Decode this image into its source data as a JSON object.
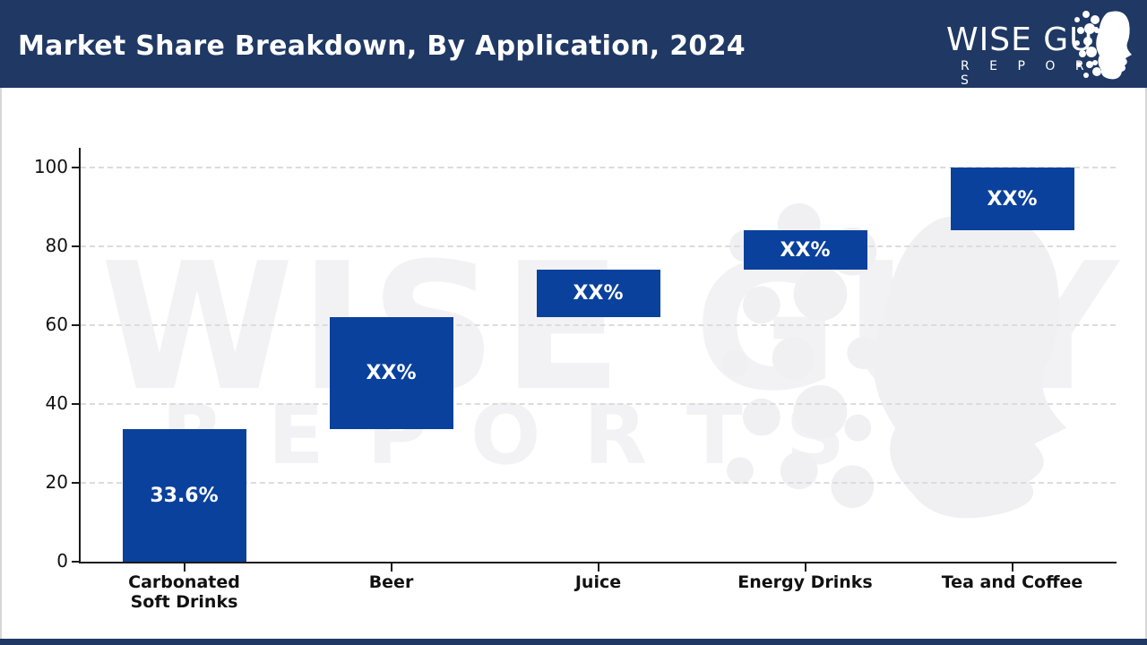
{
  "header": {
    "title": "Market Share Breakdown, By Application, 2024",
    "logo": {
      "name_line": "WISE GUY",
      "reports_line": "R E P O R T S"
    }
  },
  "watermark": {
    "name_line": "WISE GUY",
    "reports_line": "REPORTS"
  },
  "chart_data": {
    "type": "bar",
    "variant": "waterfall-floating-bars",
    "title": "Market Share Breakdown, By Application, 2024",
    "categories": [
      "Carbonated Soft Drinks",
      "Beer",
      "Juice",
      "Energy Drinks",
      "Tea and Coffee"
    ],
    "series": [
      {
        "name": "Market share (%)",
        "segments": [
          {
            "category": "Carbonated Soft Drinks",
            "start": 0,
            "end": 33.6,
            "label": "33.6%"
          },
          {
            "category": "Beer",
            "start": 33.6,
            "end": 62,
            "label": "XX%"
          },
          {
            "category": "Juice",
            "start": 62,
            "end": 74,
            "label": "XX%"
          },
          {
            "category": "Energy Drinks",
            "start": 74,
            "end": 84,
            "label": "XX%"
          },
          {
            "category": "Tea and Coffee",
            "start": 84,
            "end": 100,
            "label": "XX%"
          }
        ]
      }
    ],
    "ylim": [
      0,
      100
    ],
    "yticks": [
      0,
      20,
      40,
      60,
      80,
      100
    ],
    "grid": {
      "axis": "y",
      "style": "dashed"
    },
    "legend": "none",
    "xlabel": "",
    "ylabel": ""
  },
  "colors": {
    "header_bg": "#1F3864",
    "bar": "#0A419C",
    "bar_label": "#FFFFFF",
    "grid": "#DCDCDC",
    "axis": "#1A1A1A",
    "watermark": "#F2F2F4"
  }
}
